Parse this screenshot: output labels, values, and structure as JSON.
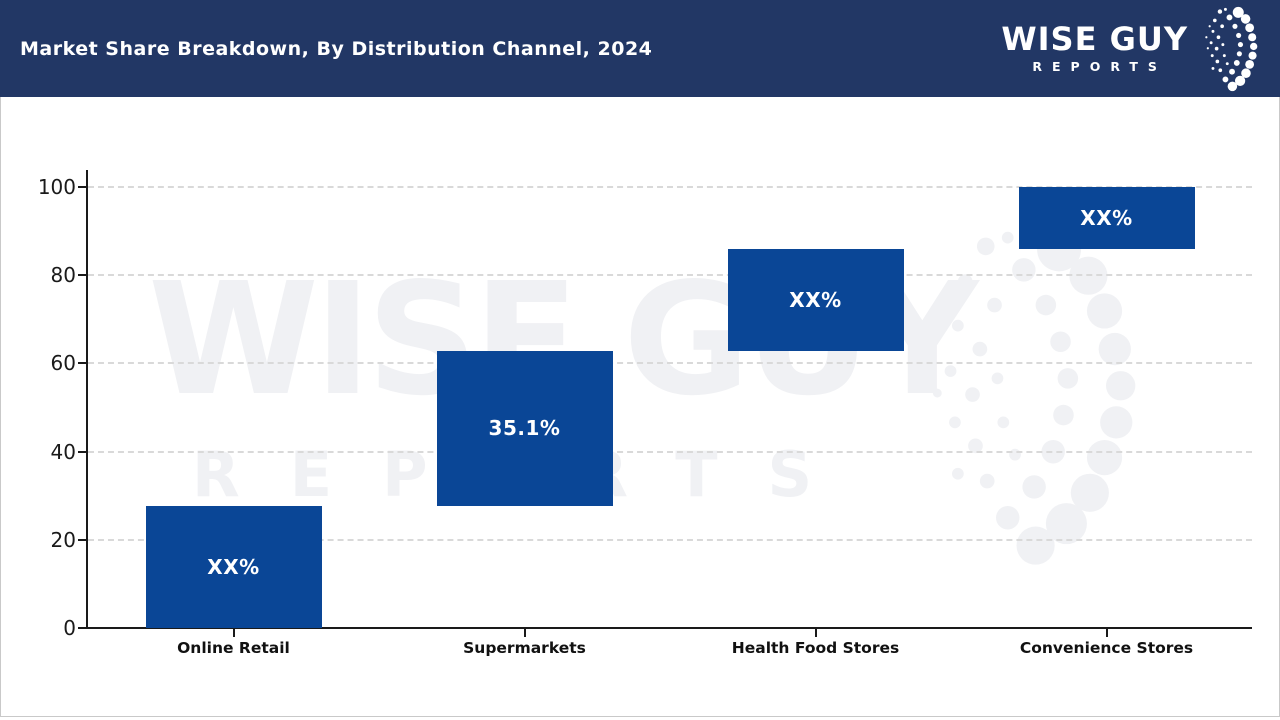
{
  "header": {
    "title": "Market Share Breakdown, By Distribution Channel, 2024",
    "logo": {
      "wordmark": "WISE GUY",
      "subtext": "REPORTS"
    }
  },
  "watermark": {
    "wordmark": "WISE GUY",
    "subtext": "REPORTS"
  },
  "chart_data": {
    "type": "bar",
    "subtype": "floating-waterfall",
    "title": "Market Share Breakdown, By Distribution Channel, 2024",
    "categories": [
      "Online Retail",
      "Supermarkets",
      "Health Food Stores",
      "Convenience Stores"
    ],
    "segments": [
      {
        "category": "Online Retail",
        "start": 0,
        "end": 27.7,
        "label": "XX%"
      },
      {
        "category": "Supermarkets",
        "start": 27.7,
        "end": 62.8,
        "label": "35.1%"
      },
      {
        "category": "Health Food Stores",
        "start": 62.8,
        "end": 85.9,
        "label": "XX%"
      },
      {
        "category": "Convenience Stores",
        "start": 85.9,
        "end": 100,
        "label": "XX%"
      }
    ],
    "xlabel": "",
    "ylabel": "",
    "y_ticks": [
      0,
      20,
      40,
      60,
      80,
      100
    ],
    "ylim": [
      0,
      105
    ],
    "grid": "horizontal-dashed",
    "legend": "none",
    "colors": {
      "bar": "#0a4696",
      "grid": "#d9d9d9",
      "axis": "#1a1a1a",
      "bar_label": "#ffffff",
      "category_label": "#111111",
      "tick_label": "#1a1a1a",
      "header_bg": "#223765",
      "watermark": "#f0f1f4",
      "frame_border": "#c9c9c9"
    }
  }
}
